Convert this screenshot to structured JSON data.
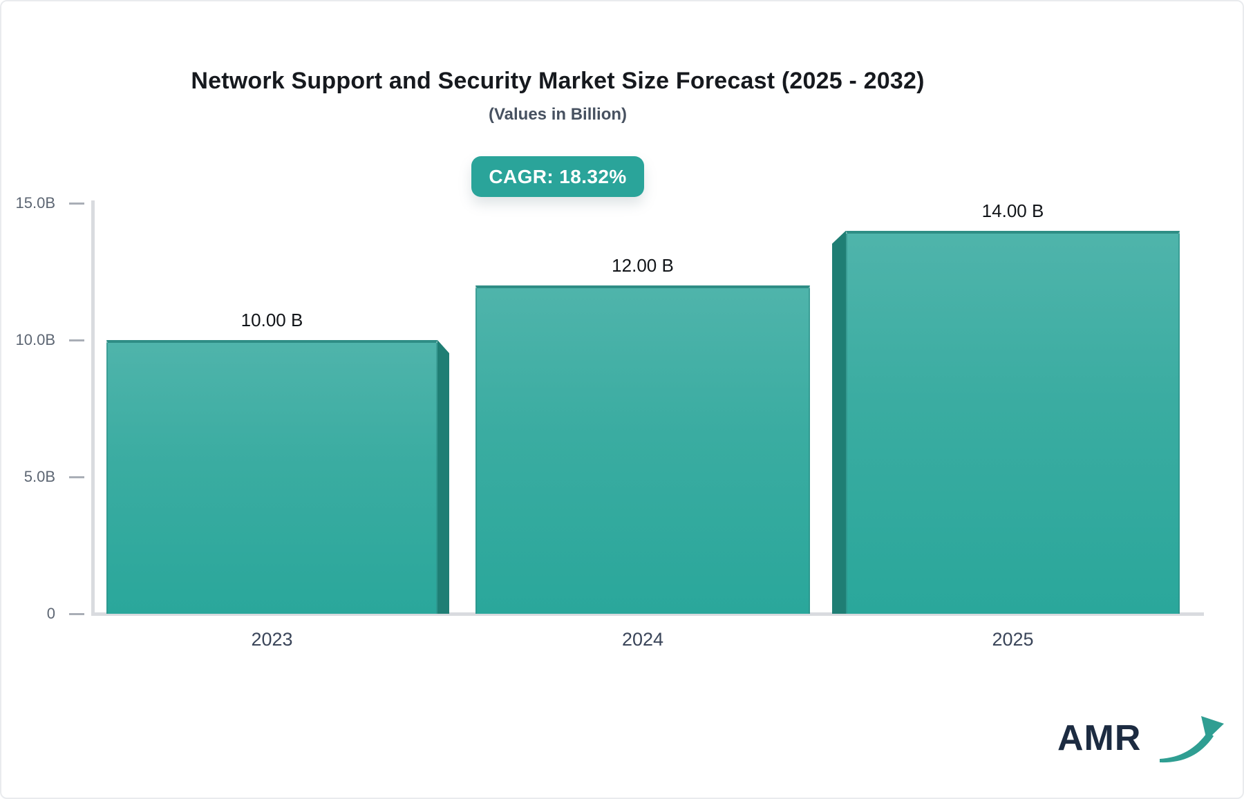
{
  "header": {
    "title": "Network Support and Security Market Size Forecast (2025 - 2032)",
    "subtitle": "(Values in Billion)"
  },
  "badge": {
    "label": "CAGR: 18.32%"
  },
  "logo": {
    "text": "AMR",
    "arrow_icon": "trend-up-arrow-icon"
  },
  "colors": {
    "bar_top": "#4fb4ab",
    "bar_bottom": "#2aa79b",
    "bar_edge": "#2e8d85",
    "bar_side": "#1f7e74",
    "badge_bg": "#2aa49a",
    "badge_text": "#ffffff",
    "axis_line": "#d9dbdf",
    "tick_dash": "#a9aeb6",
    "y_label": "#5d6673",
    "x_label": "#3a4559",
    "value_label": "#111418",
    "title": "#16191e",
    "subtitle": "#475160",
    "logo_text": "#1c2b41",
    "logo_arrow": "#2f9e92"
  },
  "chart_data": {
    "type": "bar",
    "categories": [
      "2023",
      "2024",
      "2025"
    ],
    "values": [
      10.0,
      12.0,
      14.0
    ],
    "bar_labels": [
      "10.00 B",
      "12.00 B",
      "14.00 B"
    ],
    "title": "Network Support and Security Market Size Forecast (2025 - 2032)",
    "subtitle": "(Values in Billion)",
    "xlabel": "",
    "ylabel": "",
    "ylim": [
      0,
      15
    ],
    "yticks": [
      {
        "value": 0,
        "label": "0"
      },
      {
        "value": 5,
        "label": "5.0B"
      },
      {
        "value": 10,
        "label": "10.0B"
      },
      {
        "value": 15,
        "label": "15.0B"
      }
    ],
    "grid": false,
    "legend": false,
    "annotation": "CAGR: 18.32%"
  }
}
